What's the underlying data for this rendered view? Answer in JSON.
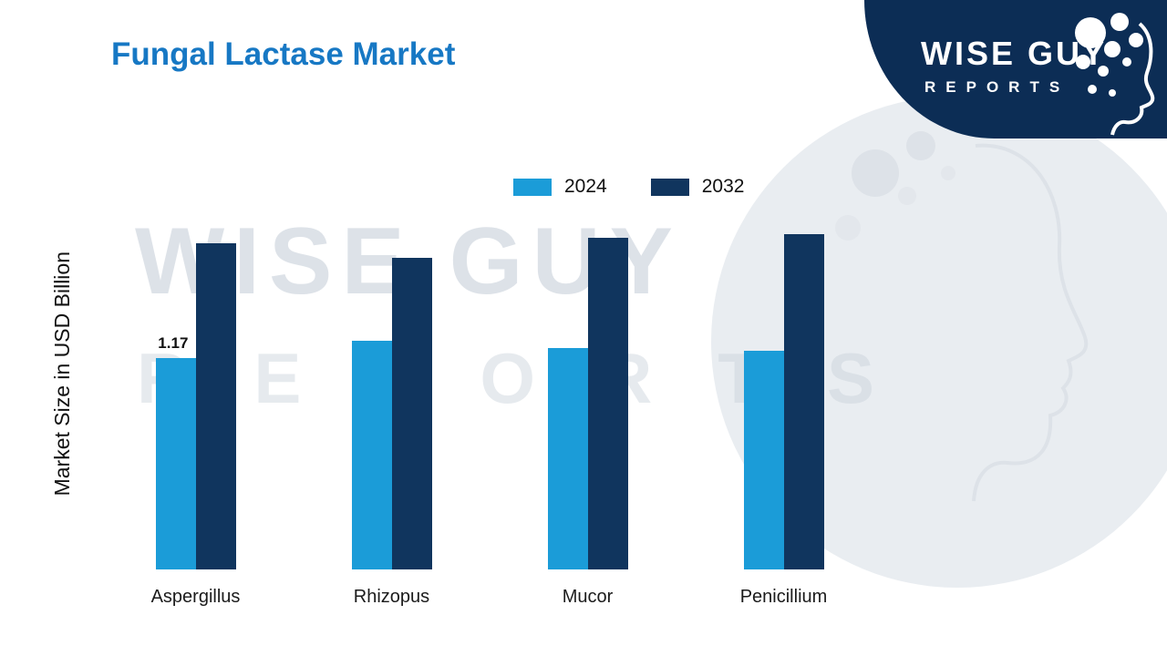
{
  "page": {
    "title": "Fungal Lactase Market"
  },
  "logo": {
    "line1": "WISE GUY",
    "line2": "REPORTS"
  },
  "watermark": {
    "line1": "WISE GUY",
    "line2": "REPORTS"
  },
  "colors": {
    "title_blue": "#1778c4",
    "series_2024": "#1b9cd8",
    "series_2032": "#10355e",
    "logo_bg": "#0c2d55",
    "watermark_gray": "#e9edf1"
  },
  "chart_data": {
    "type": "bar",
    "title": "Fungal Lactase Market",
    "categories": [
      "Aspergillus",
      "Rhizopus",
      "Mucor",
      "Penicillium"
    ],
    "series": [
      {
        "name": "2024",
        "color": "#1b9cd8",
        "values": [
          1.17,
          1.27,
          1.23,
          1.21
        ]
      },
      {
        "name": "2032",
        "color": "#10355e",
        "values": [
          1.81,
          1.73,
          1.84,
          1.86
        ]
      }
    ],
    "xlabel": "",
    "ylabel": "Market Size in USD Billion",
    "ylim": [
      0,
      2
    ],
    "grid": false,
    "legend_position": "top",
    "annotations": [
      {
        "category": "Aspergillus",
        "series": "2024",
        "text": "1.17"
      }
    ]
  }
}
